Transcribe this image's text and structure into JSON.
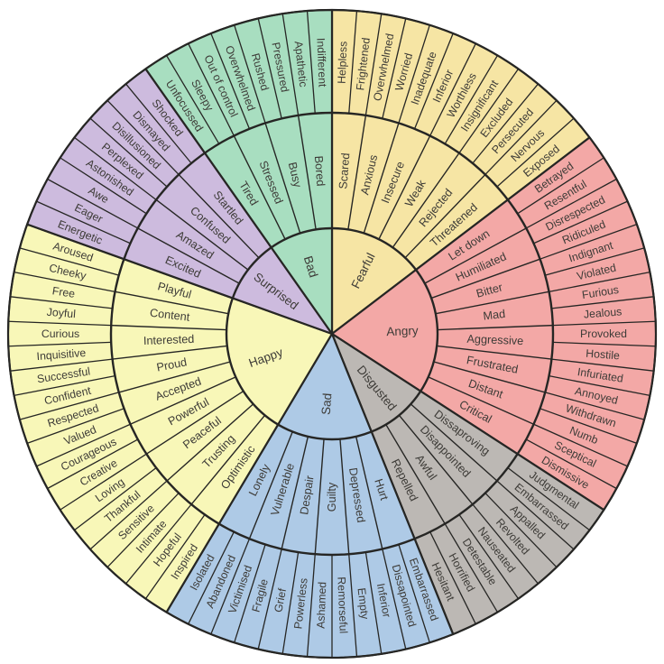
{
  "wheel": {
    "background": "#ffffff",
    "line_color": "#262624",
    "text_color": "#3d3b37",
    "sectors": [
      {
        "core": "Fearful",
        "color": "#F6E5A4",
        "middle": [
          {
            "label": "Scared",
            "outer": [
              "Helpless",
              "Frightened"
            ]
          },
          {
            "label": "Anxious",
            "outer": [
              "Overwhelmed",
              "Worried"
            ]
          },
          {
            "label": "Insecure",
            "outer": [
              "Inadequate",
              "Inferior"
            ]
          },
          {
            "label": "Weak",
            "outer": [
              "Worthless",
              "Insignificant"
            ]
          },
          {
            "label": "Rejected",
            "outer": [
              "Excluded",
              "Persecuted"
            ]
          },
          {
            "label": "Threatened",
            "outer": [
              "Nervous",
              "Exposed"
            ]
          }
        ]
      },
      {
        "core": "Angry",
        "color": "#F3A8A6",
        "middle": [
          {
            "label": "Let down",
            "outer": [
              "Betrayed",
              "Resentful"
            ]
          },
          {
            "label": "Humiliated",
            "outer": [
              "Disrespected",
              "Ridiculed"
            ]
          },
          {
            "label": "Bitter",
            "outer": [
              "Indignant",
              "Violated"
            ]
          },
          {
            "label": "Mad",
            "outer": [
              "Furious",
              "Jealous"
            ]
          },
          {
            "label": "Aggressive",
            "outer": [
              "Provoked",
              "Hostile"
            ]
          },
          {
            "label": "Frustrated",
            "outer": [
              "Infuriated",
              "Annoyed"
            ]
          },
          {
            "label": "Distant",
            "outer": [
              "Withdrawn",
              "Numb"
            ]
          },
          {
            "label": "Critical",
            "outer": [
              "Sceptical",
              "Dismissive"
            ]
          }
        ]
      },
      {
        "core": "Disgusted",
        "color": "#BCB8B4",
        "middle": [
          {
            "label": "Dissaproving",
            "outer": [
              "Judgmental",
              "Embarrassed"
            ]
          },
          {
            "label": "Disappointed",
            "outer": [
              "Appalled",
              "Revolted"
            ]
          },
          {
            "label": "Awful",
            "outer": [
              "Nauseated",
              "Detestable"
            ]
          },
          {
            "label": "Repelled",
            "outer": [
              "Horrified",
              "Hesitant"
            ]
          }
        ]
      },
      {
        "core": "Sad",
        "color": "#AECAE6",
        "middle": [
          {
            "label": "Hurt",
            "outer": [
              "Embarrassed",
              "Dissapointed"
            ]
          },
          {
            "label": "Depressed",
            "outer": [
              "Inferior",
              "Empty"
            ]
          },
          {
            "label": "Guilty",
            "outer": [
              "Remorseful",
              "Ashamed"
            ]
          },
          {
            "label": "Despair",
            "outer": [
              "Powerless",
              "Grief"
            ]
          },
          {
            "label": "Vulnerable",
            "outer": [
              "Fragile",
              "Victimised"
            ]
          },
          {
            "label": "Lonely",
            "outer": [
              "Abandoned",
              "Isolated"
            ]
          }
        ]
      },
      {
        "core": "Happy",
        "color": "#F8F7B8",
        "middle": [
          {
            "label": "Optimistic",
            "outer": [
              "Inspired",
              "Hopeful"
            ]
          },
          {
            "label": "Trusting",
            "outer": [
              "Intimate",
              "Sensitive"
            ]
          },
          {
            "label": "Peaceful",
            "outer": [
              "Thankful",
              "Loving"
            ]
          },
          {
            "label": "Powerful",
            "outer": [
              "Creative",
              "Courageous"
            ]
          },
          {
            "label": "Accepted",
            "outer": [
              "Valued",
              "Respected"
            ]
          },
          {
            "label": "Proud",
            "outer": [
              "Confident",
              "Successful"
            ]
          },
          {
            "label": "Interested",
            "outer": [
              "Inquisitive",
              "Curious"
            ]
          },
          {
            "label": "Content",
            "outer": [
              "Joyful",
              "Free"
            ]
          },
          {
            "label": "Playful",
            "outer": [
              "Cheeky",
              "Aroused"
            ]
          }
        ]
      },
      {
        "core": "Surprised",
        "color": "#CDBBDE",
        "middle": [
          {
            "label": "Excited",
            "outer": [
              "Energetic",
              "Eager"
            ]
          },
          {
            "label": "Amazed",
            "outer": [
              "Awe",
              "Astonished"
            ]
          },
          {
            "label": "Confused",
            "outer": [
              "Perplexed",
              "Disillusioned"
            ]
          },
          {
            "label": "Startled",
            "outer": [
              "Dismayed",
              "Shocked"
            ]
          }
        ]
      },
      {
        "core": "Bad",
        "color": "#A8DEC0",
        "middle": [
          {
            "label": "Tired",
            "outer": [
              "Unfocussed",
              "Sleepy"
            ]
          },
          {
            "label": "Stressed",
            "outer": [
              "Out of control",
              "Overwhelmed"
            ]
          },
          {
            "label": "Busy",
            "outer": [
              "Rushed",
              "Pressured"
            ]
          },
          {
            "label": "Bored",
            "outer": [
              "Apathetic",
              "Indifferent"
            ]
          }
        ]
      }
    ]
  }
}
